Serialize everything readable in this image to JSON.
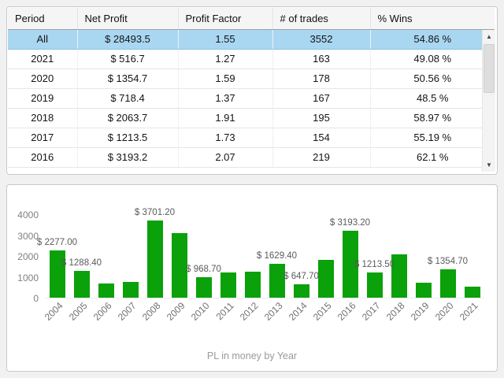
{
  "table": {
    "columns": [
      "Period",
      "Net Profit",
      "Profit Factor",
      "# of trades",
      "% Wins"
    ],
    "rows": [
      {
        "period": "All",
        "net_profit": "$ 28493.5",
        "profit_factor": "1.55",
        "trades": "3552",
        "wins": "54.86 %",
        "selected": true
      },
      {
        "period": "2021",
        "net_profit": "$ 516.7",
        "profit_factor": "1.27",
        "trades": "163",
        "wins": "49.08 %",
        "selected": false
      },
      {
        "period": "2020",
        "net_profit": "$ 1354.7",
        "profit_factor": "1.59",
        "trades": "178",
        "wins": "50.56 %",
        "selected": false
      },
      {
        "period": "2019",
        "net_profit": "$ 718.4",
        "profit_factor": "1.37",
        "trades": "167",
        "wins": "48.5 %",
        "selected": false
      },
      {
        "period": "2018",
        "net_profit": "$ 2063.7",
        "profit_factor": "1.91",
        "trades": "195",
        "wins": "58.97 %",
        "selected": false
      },
      {
        "period": "2017",
        "net_profit": "$ 1213.5",
        "profit_factor": "1.73",
        "trades": "154",
        "wins": "55.19 %",
        "selected": false
      },
      {
        "period": "2016",
        "net_profit": "$ 3193.2",
        "profit_factor": "2.07",
        "trades": "219",
        "wins": "62.1 %",
        "selected": false
      }
    ],
    "scrollbar": {
      "up_glyph": "▲",
      "down_glyph": "▼"
    }
  },
  "chart_data": {
    "type": "bar",
    "title": "PL in money by Year",
    "categories": [
      "2004",
      "2005",
      "2006",
      "2007",
      "2008",
      "2009",
      "2010",
      "2011",
      "2012",
      "2013",
      "2014",
      "2015",
      "2016",
      "2017",
      "2018",
      "2019",
      "2020",
      "2021"
    ],
    "values": [
      2277.0,
      1288.4,
      700,
      750,
      3701.2,
      3100,
      968.7,
      1200,
      1250,
      1629.4,
      647.7,
      1800,
      3193.2,
      1213.5,
      2063.7,
      718.4,
      1354.7,
      516.7
    ],
    "bar_labels": [
      "$ 2277.00",
      "$ 1288.40",
      "",
      "",
      "$ 3701.20",
      "",
      "$ 968.70",
      "",
      "",
      "$ 1629.40",
      "$ 647.70",
      "",
      "$ 3193.20",
      "$ 1213.50",
      "",
      "",
      "$ 1354.70",
      ""
    ],
    "yticks": [
      0,
      1000,
      2000,
      3000,
      4000
    ],
    "ylim": [
      0,
      4000
    ],
    "xlabel": "",
    "ylabel": "",
    "grid": false,
    "legend": false
  },
  "colors": {
    "bar": "#0aa10a",
    "selected_row_bg": "#a9d7f2",
    "selected_row_border": "#86c2e6",
    "panel_border": "#c9c9c9",
    "header_bg": "#f5f5f5",
    "axis_text": "#808080",
    "value_label_text": "#5a5a5a"
  }
}
